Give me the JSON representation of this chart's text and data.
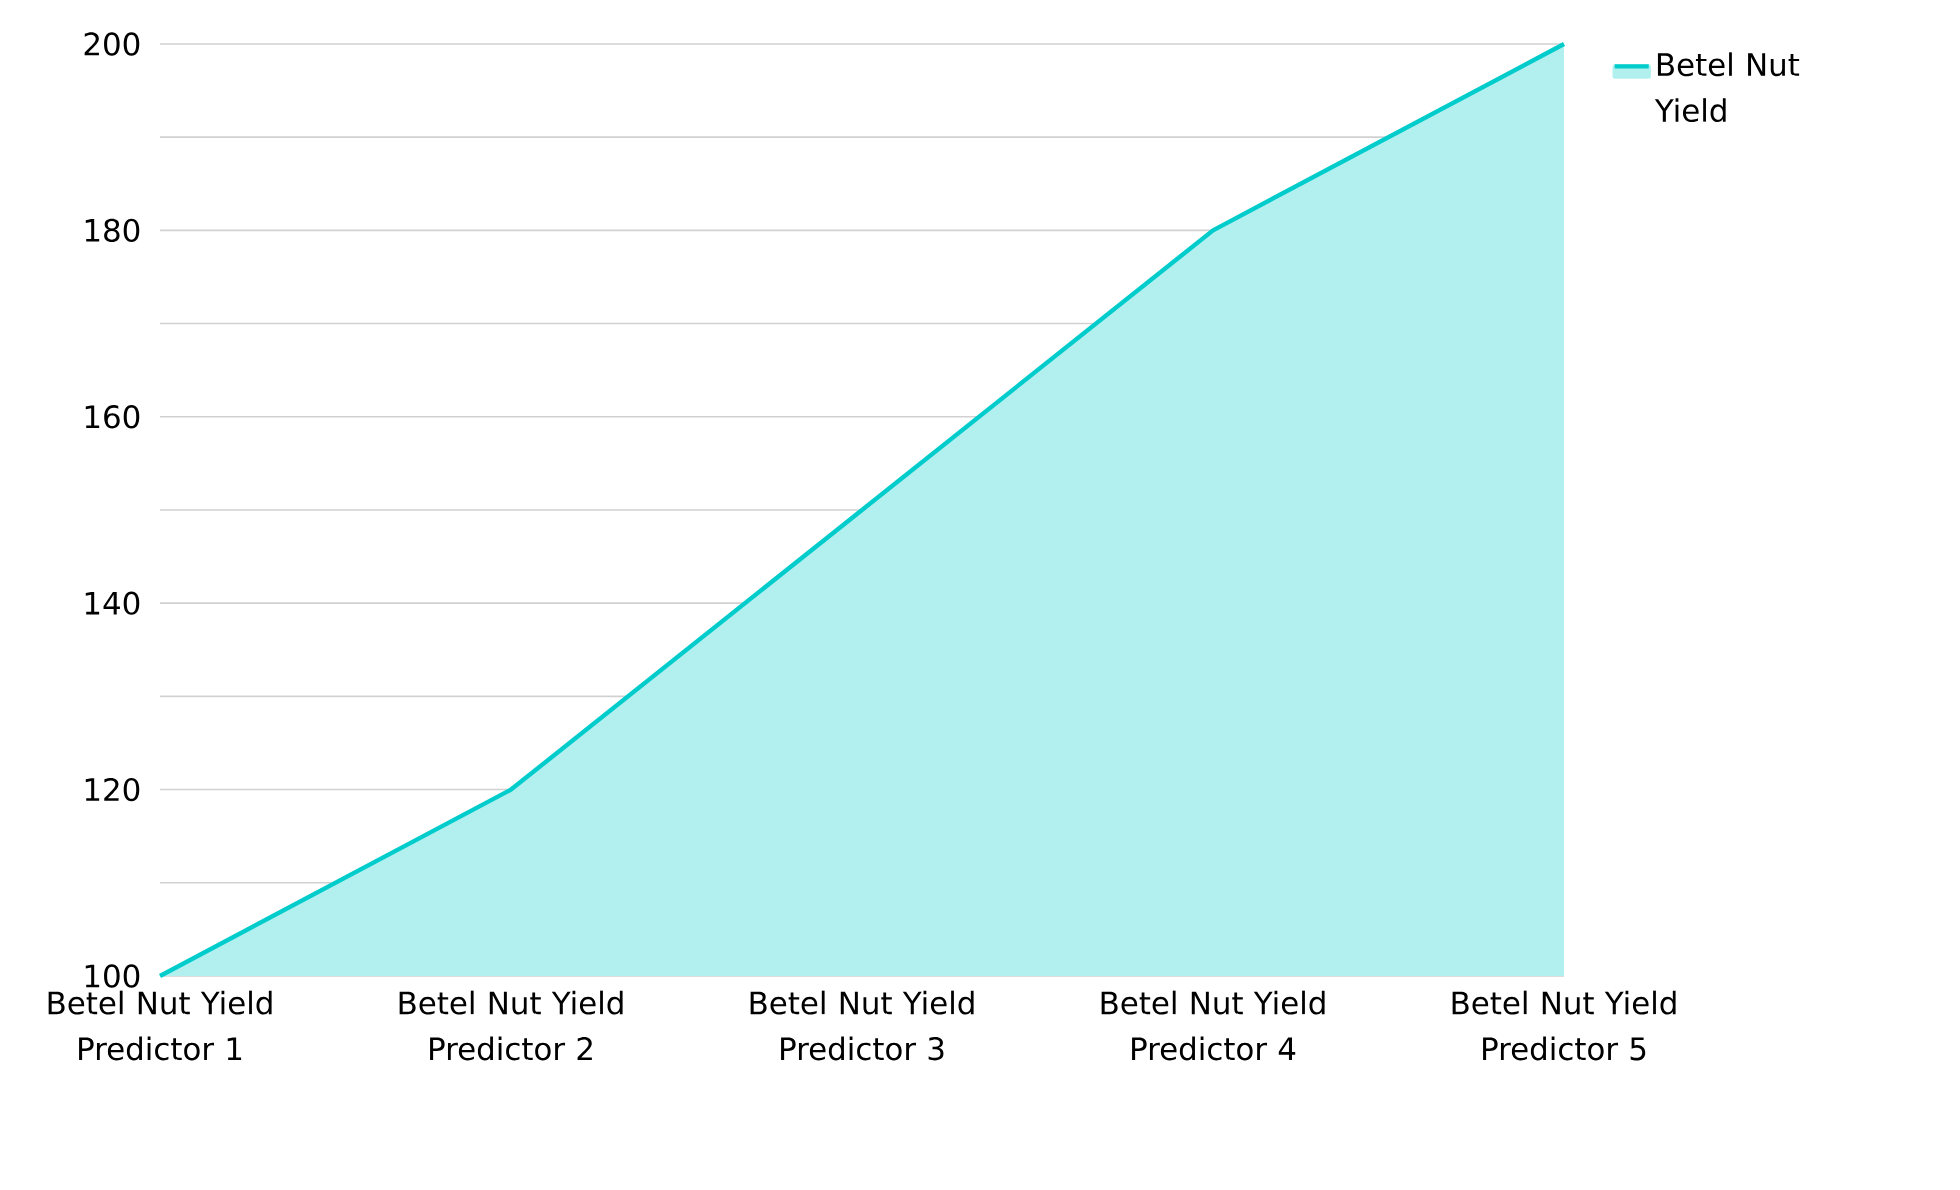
{
  "chart_data": {
    "type": "area",
    "categories": [
      "Betel Nut Yield Predictor 1",
      "Betel Nut Yield Predictor 2",
      "Betel Nut Yield Predictor 3",
      "Betel Nut Yield Predictor 4",
      "Betel Nut Yield Predictor 5"
    ],
    "series": [
      {
        "name": "Betel Nut Yield",
        "color": "#00cccc",
        "values": [
          100,
          120,
          150,
          180,
          200
        ]
      }
    ],
    "ylim": [
      100,
      200
    ],
    "yticks": [
      100,
      {
        "value": 110,
        "label": null
      },
      120,
      {
        "value": 130,
        "label": null
      },
      140,
      {
        "value": 150,
        "label": null
      },
      160,
      {
        "value": 170,
        "label": null
      },
      180,
      {
        "value": 190,
        "label": null
      },
      200
    ],
    "grid": "y",
    "legend": "top right",
    "marker": "none",
    "line_style": "solid"
  }
}
